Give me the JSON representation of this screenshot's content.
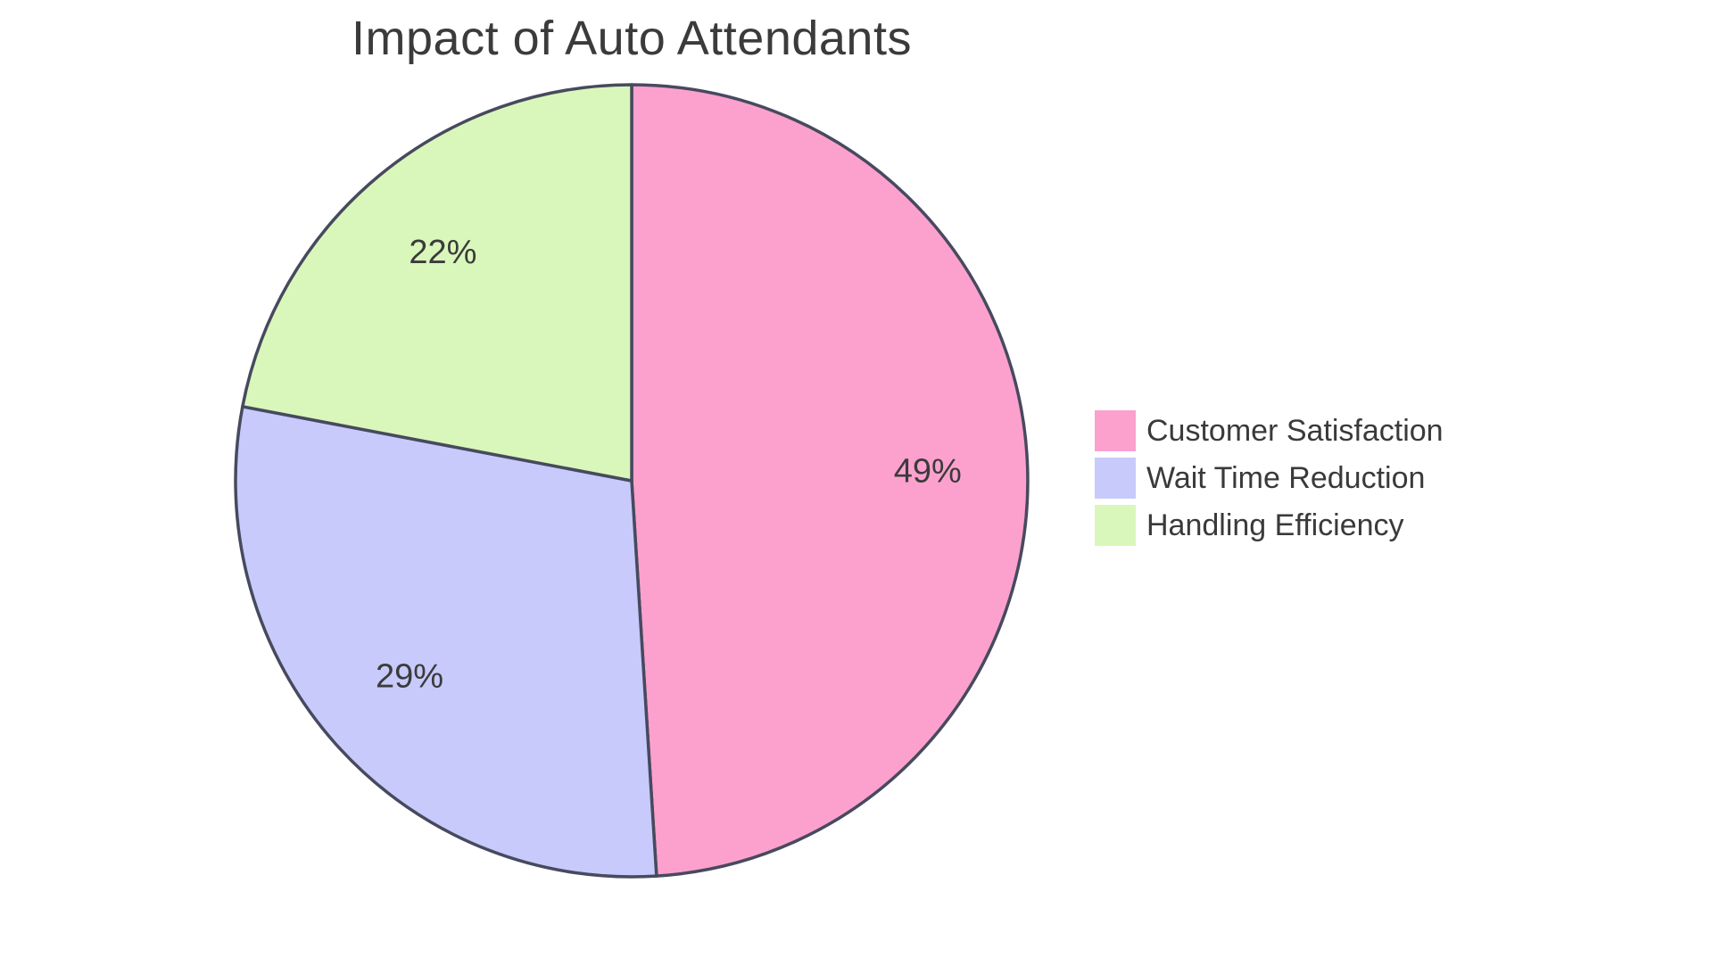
{
  "page": {
    "background": "#ffffff"
  },
  "chart_data": {
    "type": "pie",
    "title": "Impact of Auto Attendants",
    "categories": [
      "Customer Satisfaction",
      "Wait Time Reduction",
      "Handling Efficiency"
    ],
    "values": [
      49,
      29,
      22
    ],
    "slice_labels": [
      "49%",
      "29%",
      "22%"
    ],
    "colors": [
      "#FCA1CE",
      "#C7CAFB",
      "#D9F7BA"
    ],
    "slice_border_color": "#474A5E",
    "text_color": "#3B3B3B",
    "start_angle": "top",
    "direction": "clockwise",
    "legend_position": "right",
    "legend": [
      {
        "label": "Customer Satisfaction",
        "color": "#FCA1CE"
      },
      {
        "label": "Wait Time Reduction",
        "color": "#C7CAFB"
      },
      {
        "label": "Handling Efficiency",
        "color": "#D9F7BA"
      }
    ]
  }
}
